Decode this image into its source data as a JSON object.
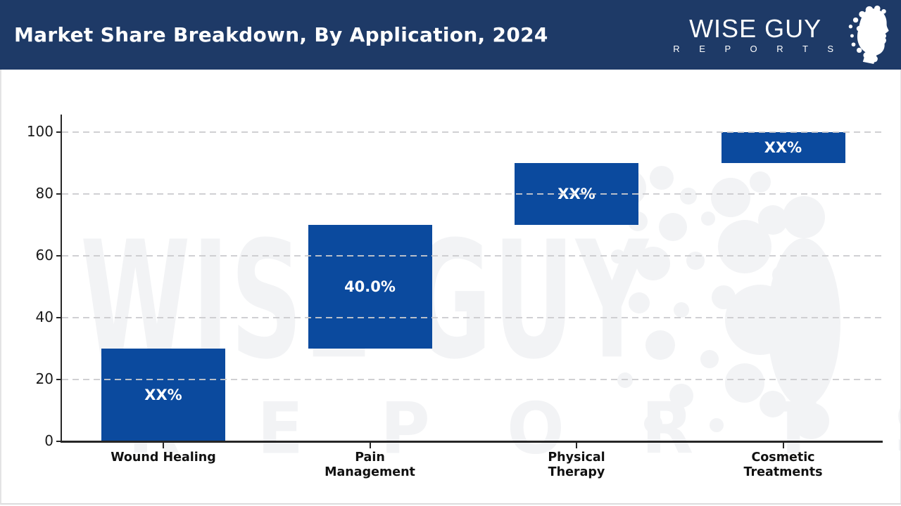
{
  "header": {
    "title": "Market Share Breakdown, By Application, 2024",
    "logo": {
      "line1": "WISE GUY",
      "line2": "R E P O R T S"
    }
  },
  "watermark": {
    "line1": "WISE GUY",
    "line2": "R E P O R T S"
  },
  "chart_data": {
    "type": "bar",
    "subtype": "floating-waterfall-segments",
    "title": "Market Share Breakdown, By Application, 2024",
    "categories": [
      "Wound Healing",
      "Pain Management",
      "Physical Therapy",
      "Cosmetic Treatments"
    ],
    "bars": [
      {
        "category": "Wound Healing",
        "start": 0,
        "end": 30,
        "value": 30,
        "label": "XX%"
      },
      {
        "category": "Pain Management",
        "start": 30,
        "end": 70,
        "value": 40,
        "label": "40.0%"
      },
      {
        "category": "Physical Therapy",
        "start": 70,
        "end": 90,
        "value": 20,
        "label": "XX%"
      },
      {
        "category": "Cosmetic Treatments",
        "start": 90,
        "end": 100,
        "value": 10,
        "label": "XX%"
      }
    ],
    "y_ticks": [
      0,
      20,
      40,
      60,
      80,
      100
    ],
    "ylim": [
      0,
      105
    ],
    "xlabel": "",
    "ylabel": "",
    "grid": "horizontal-dashed",
    "legend": "none",
    "colors": {
      "bar": "#0b4a9e",
      "header_bg": "#1e3a67",
      "grid": "#d4d4d6",
      "axis": "#262626",
      "bar_label_text": "#ffffff",
      "watermark": "#f2f3f5"
    }
  }
}
